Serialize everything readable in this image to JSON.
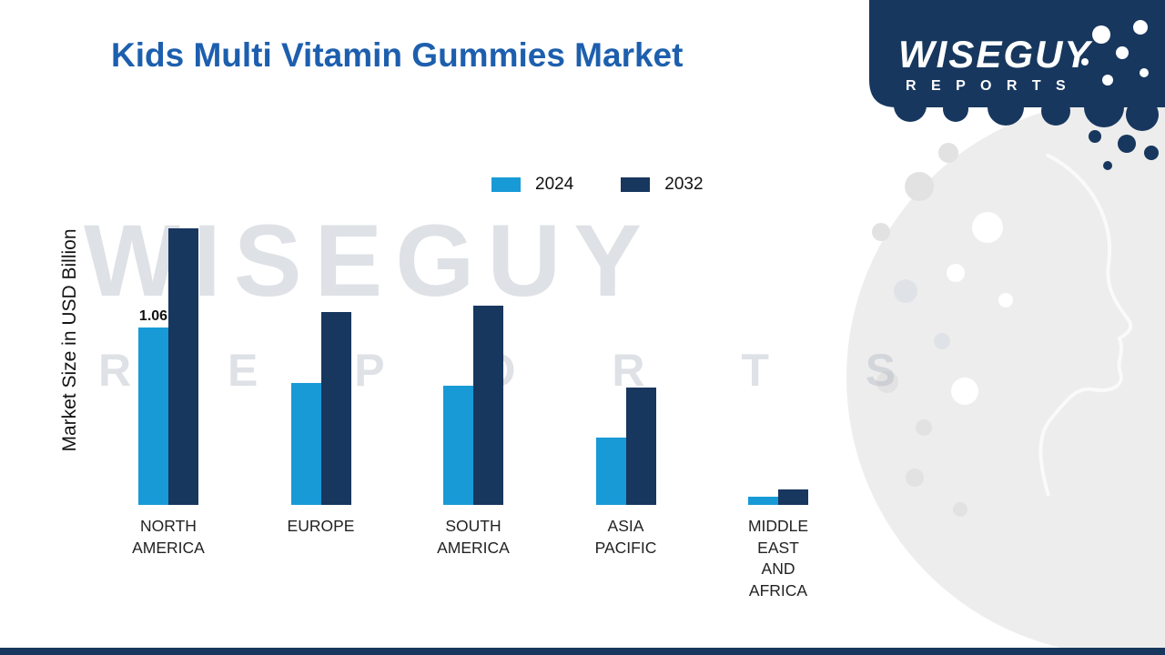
{
  "header": {
    "title": "Kids Multi Vitamin Gummies Market"
  },
  "logo": {
    "name": "WISEGUY",
    "subtitle": "R E P O R T S"
  },
  "watermark": {
    "line1": "WISEGUY",
    "line2": "R E P O R T S"
  },
  "chart_data": {
    "type": "bar",
    "title": "Kids Multi Vitamin Gummies Market",
    "ylabel": "Market Size in USD Billion",
    "xlabel": "",
    "ylim": [
      0,
      1.8
    ],
    "grid": false,
    "legend_position": "top",
    "categories": [
      "NORTH AMERICA",
      "EUROPE",
      "SOUTH AMERICA",
      "ASIA PACIFIC",
      "MIDDLE EAST AND AFRICA"
    ],
    "categories_display": [
      "NORTH\nAMERICA",
      "EUROPE",
      "SOUTH\nAMERICA",
      "ASIA\nPACIFIC",
      "MIDDLE\nEAST\nAND\nAFRICA"
    ],
    "series": [
      {
        "name": "2024",
        "color": "#189ad6",
        "values": [
          1.06,
          0.73,
          0.71,
          0.4,
          0.05
        ],
        "labels": [
          "1.06",
          "",
          "",
          "",
          ""
        ]
      },
      {
        "name": "2032",
        "color": "#17375e",
        "values": [
          1.65,
          1.15,
          1.19,
          0.7,
          0.09
        ],
        "labels": [
          "",
          "",
          "",
          "",
          ""
        ]
      }
    ]
  },
  "colors": {
    "accent_blue": "#189ad6",
    "navy": "#17375e",
    "title_blue": "#1d5fae",
    "background_gray": "#ededed"
  }
}
